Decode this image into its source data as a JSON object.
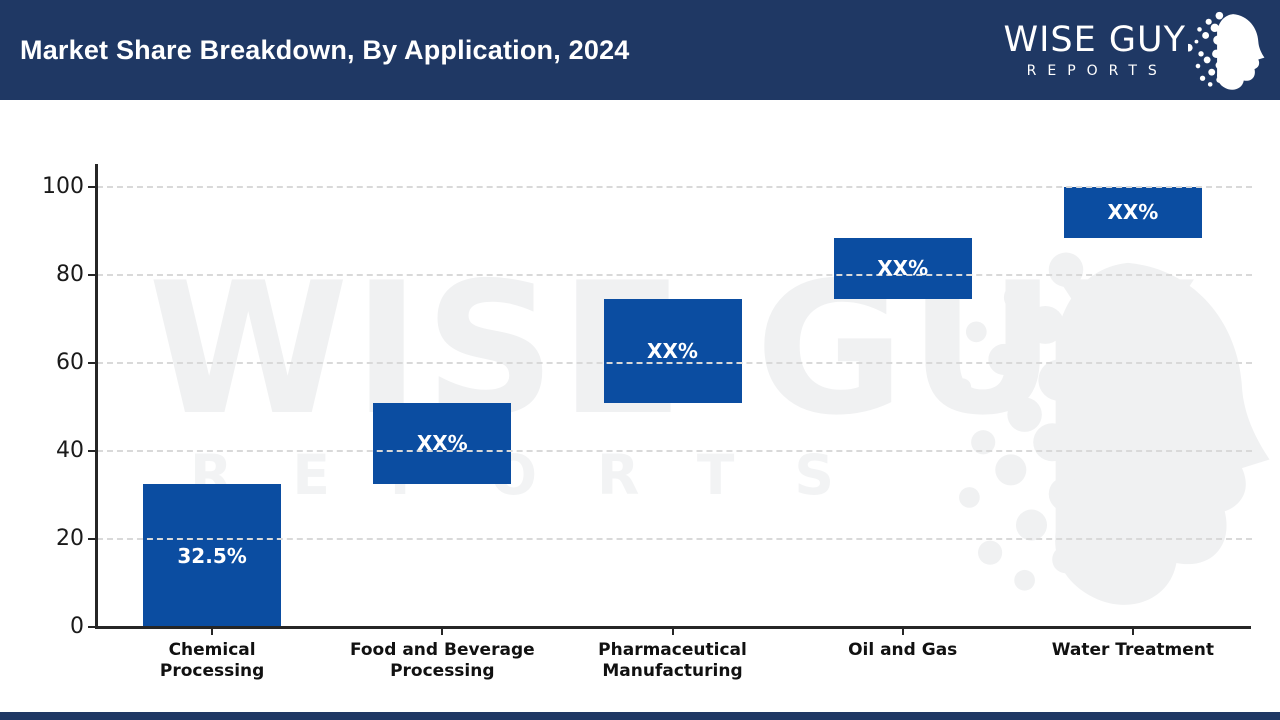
{
  "header": {
    "title": "Market Share Breakdown, By Application, 2024",
    "logo": {
      "line1": "WISE GUY",
      "line2": "REPORTS"
    }
  },
  "watermark": {
    "line1": "WISE GUY",
    "line2": "REPORTS"
  },
  "chart_data": {
    "type": "bar",
    "subtype": "waterfall",
    "title": "Market Share Breakdown, By Application, 2024",
    "categories": [
      "Chemical Processing",
      "Food and Beverage Processing",
      "Pharmaceutical Manufacturing",
      "Oil and Gas",
      "Water Treatment"
    ],
    "categories_lines": [
      [
        "Chemical",
        "Processing"
      ],
      [
        "Food and Beverage",
        "Processing"
      ],
      [
        "Pharmaceutical",
        "Manufacturing"
      ],
      [
        "Oil and Gas"
      ],
      [
        "Water Treatment"
      ]
    ],
    "segments": [
      {
        "category": "Chemical Processing",
        "label": "32.5%",
        "start": 0,
        "end": 32.5,
        "value": 32.5
      },
      {
        "category": "Food and Beverage Processing",
        "label": "XX%",
        "start": 32.5,
        "end": 51,
        "value": 18.5
      },
      {
        "category": "Pharmaceutical Manufacturing",
        "label": "XX%",
        "start": 51,
        "end": 74.5,
        "value": 23.5
      },
      {
        "category": "Oil and Gas",
        "label": "XX%",
        "start": 74.5,
        "end": 88.5,
        "value": 14
      },
      {
        "category": "Water Treatment",
        "label": "XX%",
        "start": 88.5,
        "end": 100,
        "value": 11.5
      }
    ],
    "ylim": [
      0,
      100
    ],
    "yticks": [
      0,
      20,
      40,
      60,
      80,
      100
    ],
    "grid": "horizontal-dashed",
    "legend": "none",
    "bar_color": "#0b4da1",
    "label_color": "#ffffff"
  },
  "colors": {
    "header_bg": "#1f3864",
    "footer_bg": "#1f3864",
    "bar": "#0b4da1",
    "gridline": "#d9d9d9",
    "axis": "#262626",
    "watermark": "#f0f1f2"
  }
}
